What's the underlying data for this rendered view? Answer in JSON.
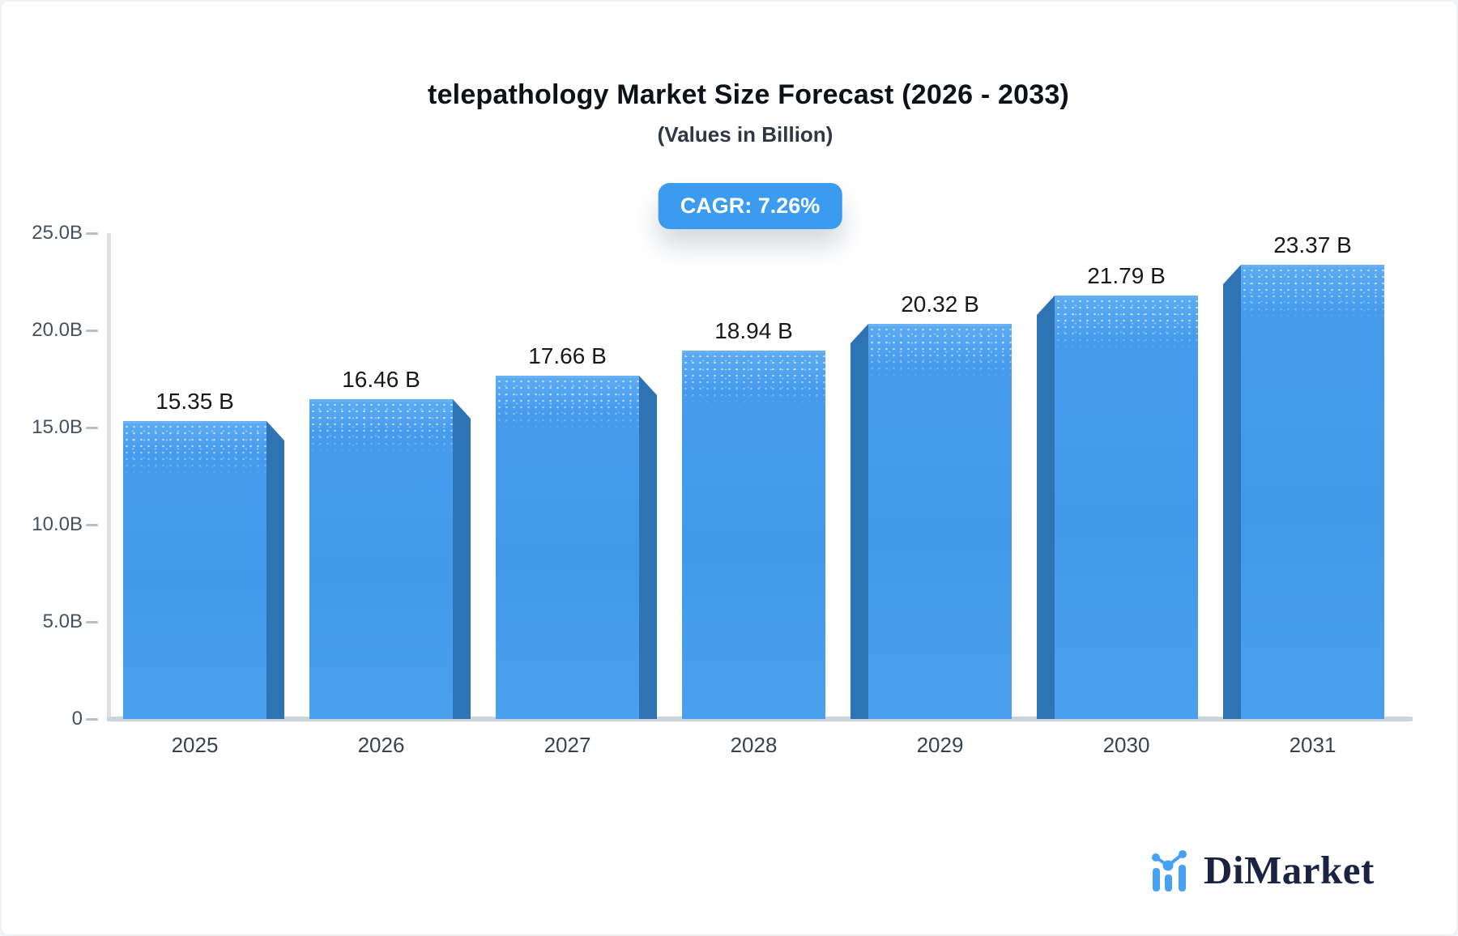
{
  "header": {
    "title": "telepathology Market Size Forecast (2026 - 2033)",
    "subtitle": "(Values in Billion)",
    "cagr_label": "CAGR: 7.26%"
  },
  "chart_data": {
    "type": "bar",
    "categories": [
      "2025",
      "2026",
      "2027",
      "2028",
      "2029",
      "2030",
      "2031"
    ],
    "values": [
      15.35,
      16.46,
      17.66,
      18.94,
      20.32,
      21.79,
      23.37
    ],
    "bar_labels": [
      "15.35 B",
      "16.46 B",
      "17.66 B",
      "18.94 B",
      "20.32 B",
      "21.79 B",
      "23.37 B"
    ],
    "title": "telepathology Market Size Forecast (2026 - 2033)",
    "subtitle": "(Values in Billion)",
    "xlabel": "",
    "ylabel": "",
    "ylim": [
      0,
      25
    ],
    "ytick_labels": [
      "0",
      "5.0B",
      "10.0B",
      "15.0B",
      "20.0B",
      "25.0B"
    ],
    "grid": false,
    "legend": false,
    "style": "3d-extruded-bars",
    "colors": {
      "bar_face": "#4299e9",
      "bar_face_light": "#5cabf2",
      "bar_side": "#2e74b4",
      "badge_bg": "#3b9cef",
      "badge_text": "#ffffff",
      "axis_line": "#dde0e5",
      "baseline": "#cdd3db",
      "tick_text": "#47505e",
      "value_text": "#17191d"
    }
  },
  "logo": {
    "text": "DiMarket",
    "icon": "mini-bar-sparkline-icon",
    "icon_color": "#47a1f2",
    "text_color": "#1a2342"
  }
}
